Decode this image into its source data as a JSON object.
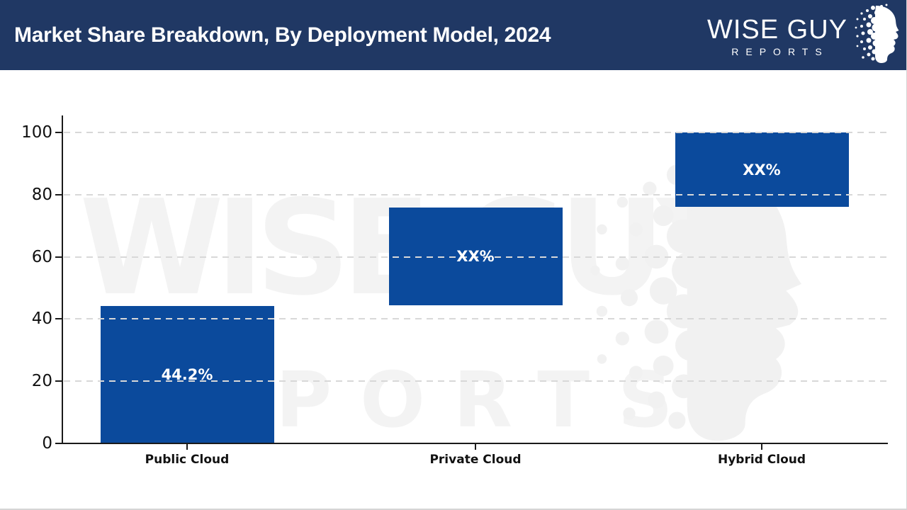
{
  "header": {
    "title": "Market Share Breakdown, By Deployment Model, 2024"
  },
  "logo": {
    "line1": "WISE GUY",
    "line2": "REPORTS",
    "face_icon": "dotted-face-profile"
  },
  "watermark": {
    "line1": "WISE GUY",
    "line2": "REPORTS",
    "face_icon": "dotted-face-profile"
  },
  "colors": {
    "header_bg": "#203864",
    "bar": "#0b4a9c",
    "grid": "#d8d8d8",
    "axis": "#1a1a1a",
    "title_text": "#ffffff",
    "watermark": "#f3f3f3"
  },
  "chart_data": {
    "type": "bar",
    "subtype": "waterfall",
    "title": "Market Share Breakdown, By Deployment Model, 2024",
    "unit": "%",
    "categories": [
      "Public Cloud",
      "Private Cloud",
      "Hybrid Cloud"
    ],
    "segments": [
      {
        "category": "Public Cloud",
        "start": 0,
        "end": 44.2,
        "label": "44.2%"
      },
      {
        "category": "Private Cloud",
        "start": 44.5,
        "end": 75.9,
        "label": "XX%"
      },
      {
        "category": "Hybrid Cloud",
        "start": 76.1,
        "end": 100,
        "label": "XX%"
      }
    ],
    "yticks": [
      0,
      20,
      40,
      60,
      80,
      100
    ],
    "ylim": [
      0,
      105
    ],
    "grid": "horizontal-dashed",
    "legend": "none"
  }
}
